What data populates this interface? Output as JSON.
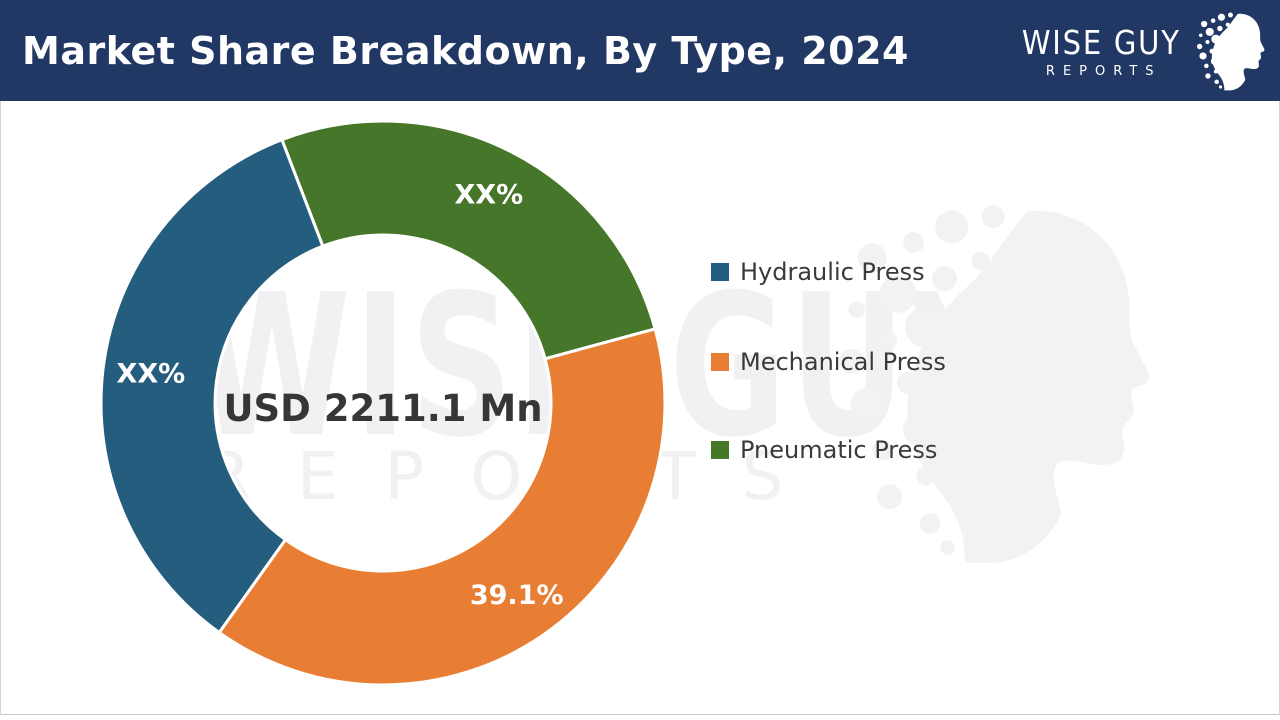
{
  "header": {
    "title": "Market Share Breakdown, By Type, 2024",
    "logo": {
      "name": "WISE GUY",
      "tagline": "REPORTS"
    }
  },
  "watermark": {
    "line1": "WISE GUY",
    "line2": "REPORTS"
  },
  "chart_data": {
    "type": "donut",
    "title": "Market Share Breakdown, By Type, 2024",
    "center_label": "USD 2211.1 Mn",
    "start_angle_deg": -21,
    "slices": [
      {
        "name": "Pneumatic Press",
        "label": "XX%",
        "value": 26.6,
        "color": "#46762a"
      },
      {
        "name": "Mechanical Press",
        "label": "39.1%",
        "value": 39.1,
        "color": "#e87e33"
      },
      {
        "name": "Hydraulic Press",
        "label": "XX%",
        "value": 34.3,
        "color": "#245d7e"
      }
    ],
    "legend": [
      {
        "label": "Hydraulic Press",
        "color": "#245d7e"
      },
      {
        "label": "Mechanical Press",
        "color": "#e87e33"
      },
      {
        "label": "Pneumatic Press",
        "color": "#46762a"
      }
    ],
    "legend_position": "right"
  }
}
